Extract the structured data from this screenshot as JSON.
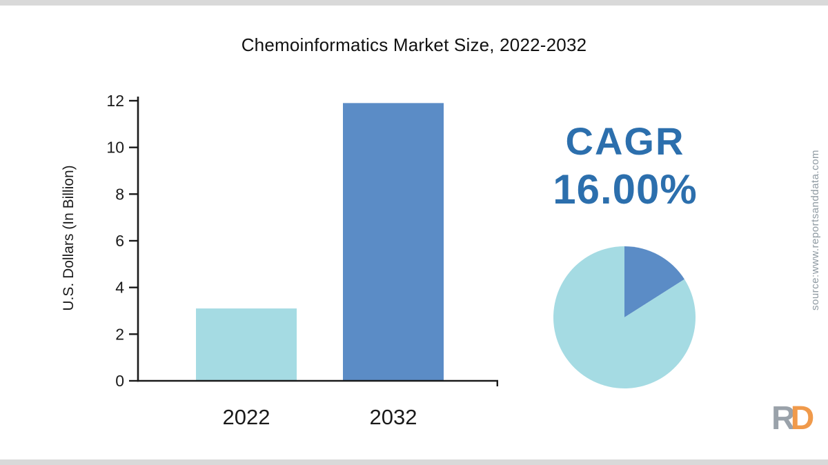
{
  "page": {
    "title": "Chemoinformatics Market Size, 2022-2032",
    "source_text": "source:www.reportsanddata.com",
    "logo": {
      "letter_r": "R",
      "letter_d": "D"
    }
  },
  "cagr": {
    "label": "CAGR",
    "value": "16.00%"
  },
  "colors": {
    "light_blue": "#a5dbe3",
    "medium_blue": "#5b8cc6",
    "cagr_text_blue": "#2c6fad",
    "axis_black": "#1a1a1a",
    "source_gray": "#8f9aa2",
    "logo_gray": "#9aa2aa",
    "logo_orange": "#f09a4b",
    "border_strip_gray": "#d9d9d9"
  },
  "chart_data": [
    {
      "type": "bar",
      "title": "Chemoinformatics Market Size, 2022-2032",
      "categories": [
        "2022",
        "2032"
      ],
      "values": [
        3.1,
        11.9
      ],
      "bar_colors": [
        "#a5dbe3",
        "#5b8cc6"
      ],
      "xlabel": "",
      "ylabel": "U.S. Dollars (In Billion)",
      "ylim": [
        0,
        12
      ],
      "yticks": [
        0,
        2,
        4,
        6,
        8,
        10,
        12
      ],
      "grid": false,
      "legend": "none"
    },
    {
      "type": "pie",
      "labels": [
        "CAGR highlight slice",
        "remainder"
      ],
      "values": [
        16,
        84
      ],
      "colors": [
        "#5b8cc6",
        "#a5dbe3"
      ],
      "start_angle_deg": -90,
      "direction": "clockwise",
      "annotation": "16.00% CAGR"
    }
  ]
}
